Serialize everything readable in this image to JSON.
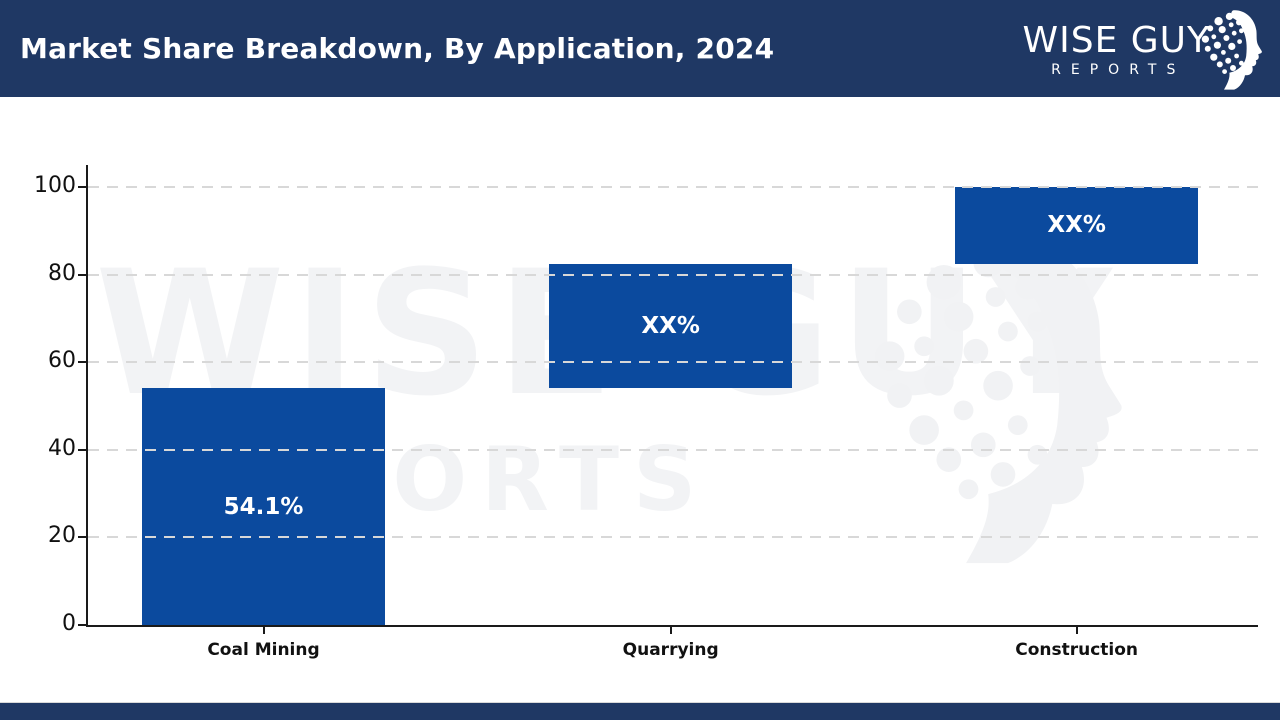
{
  "header": {
    "title": "Market Share Breakdown, By Application, 2024",
    "bg_color": "#1F3864",
    "logo": {
      "brand_line1": "WISE GUY",
      "brand_line2": "REPORTS"
    }
  },
  "watermark": {
    "line1": "WISE GUY",
    "line2": "REPORTS"
  },
  "chart_data": {
    "type": "bar",
    "variant": "floating-segment-waterfall",
    "title": "Market Share Breakdown, By Application, 2024",
    "categories": [
      "Coal Mining",
      "Quarrying",
      "Construction"
    ],
    "bars": [
      {
        "category": "Coal Mining",
        "start": 0,
        "end": 54.1,
        "label": "54.1%"
      },
      {
        "category": "Quarrying",
        "start": 54.1,
        "end": 82.5,
        "label": "XX%"
      },
      {
        "category": "Construction",
        "start": 82.5,
        "end": 100,
        "label": "XX%"
      }
    ],
    "y_ticks": [
      0,
      20,
      40,
      60,
      80,
      100
    ],
    "ylim": [
      0,
      105
    ],
    "xlabel": "",
    "ylabel": "",
    "legend": "none",
    "grid": "horizontal-dashed",
    "bar_color": "#0B4A9E",
    "grid_color": "#D8D8D8",
    "axis_color": "#1A1A1A",
    "bar_label_color": "#FFFFFF"
  }
}
